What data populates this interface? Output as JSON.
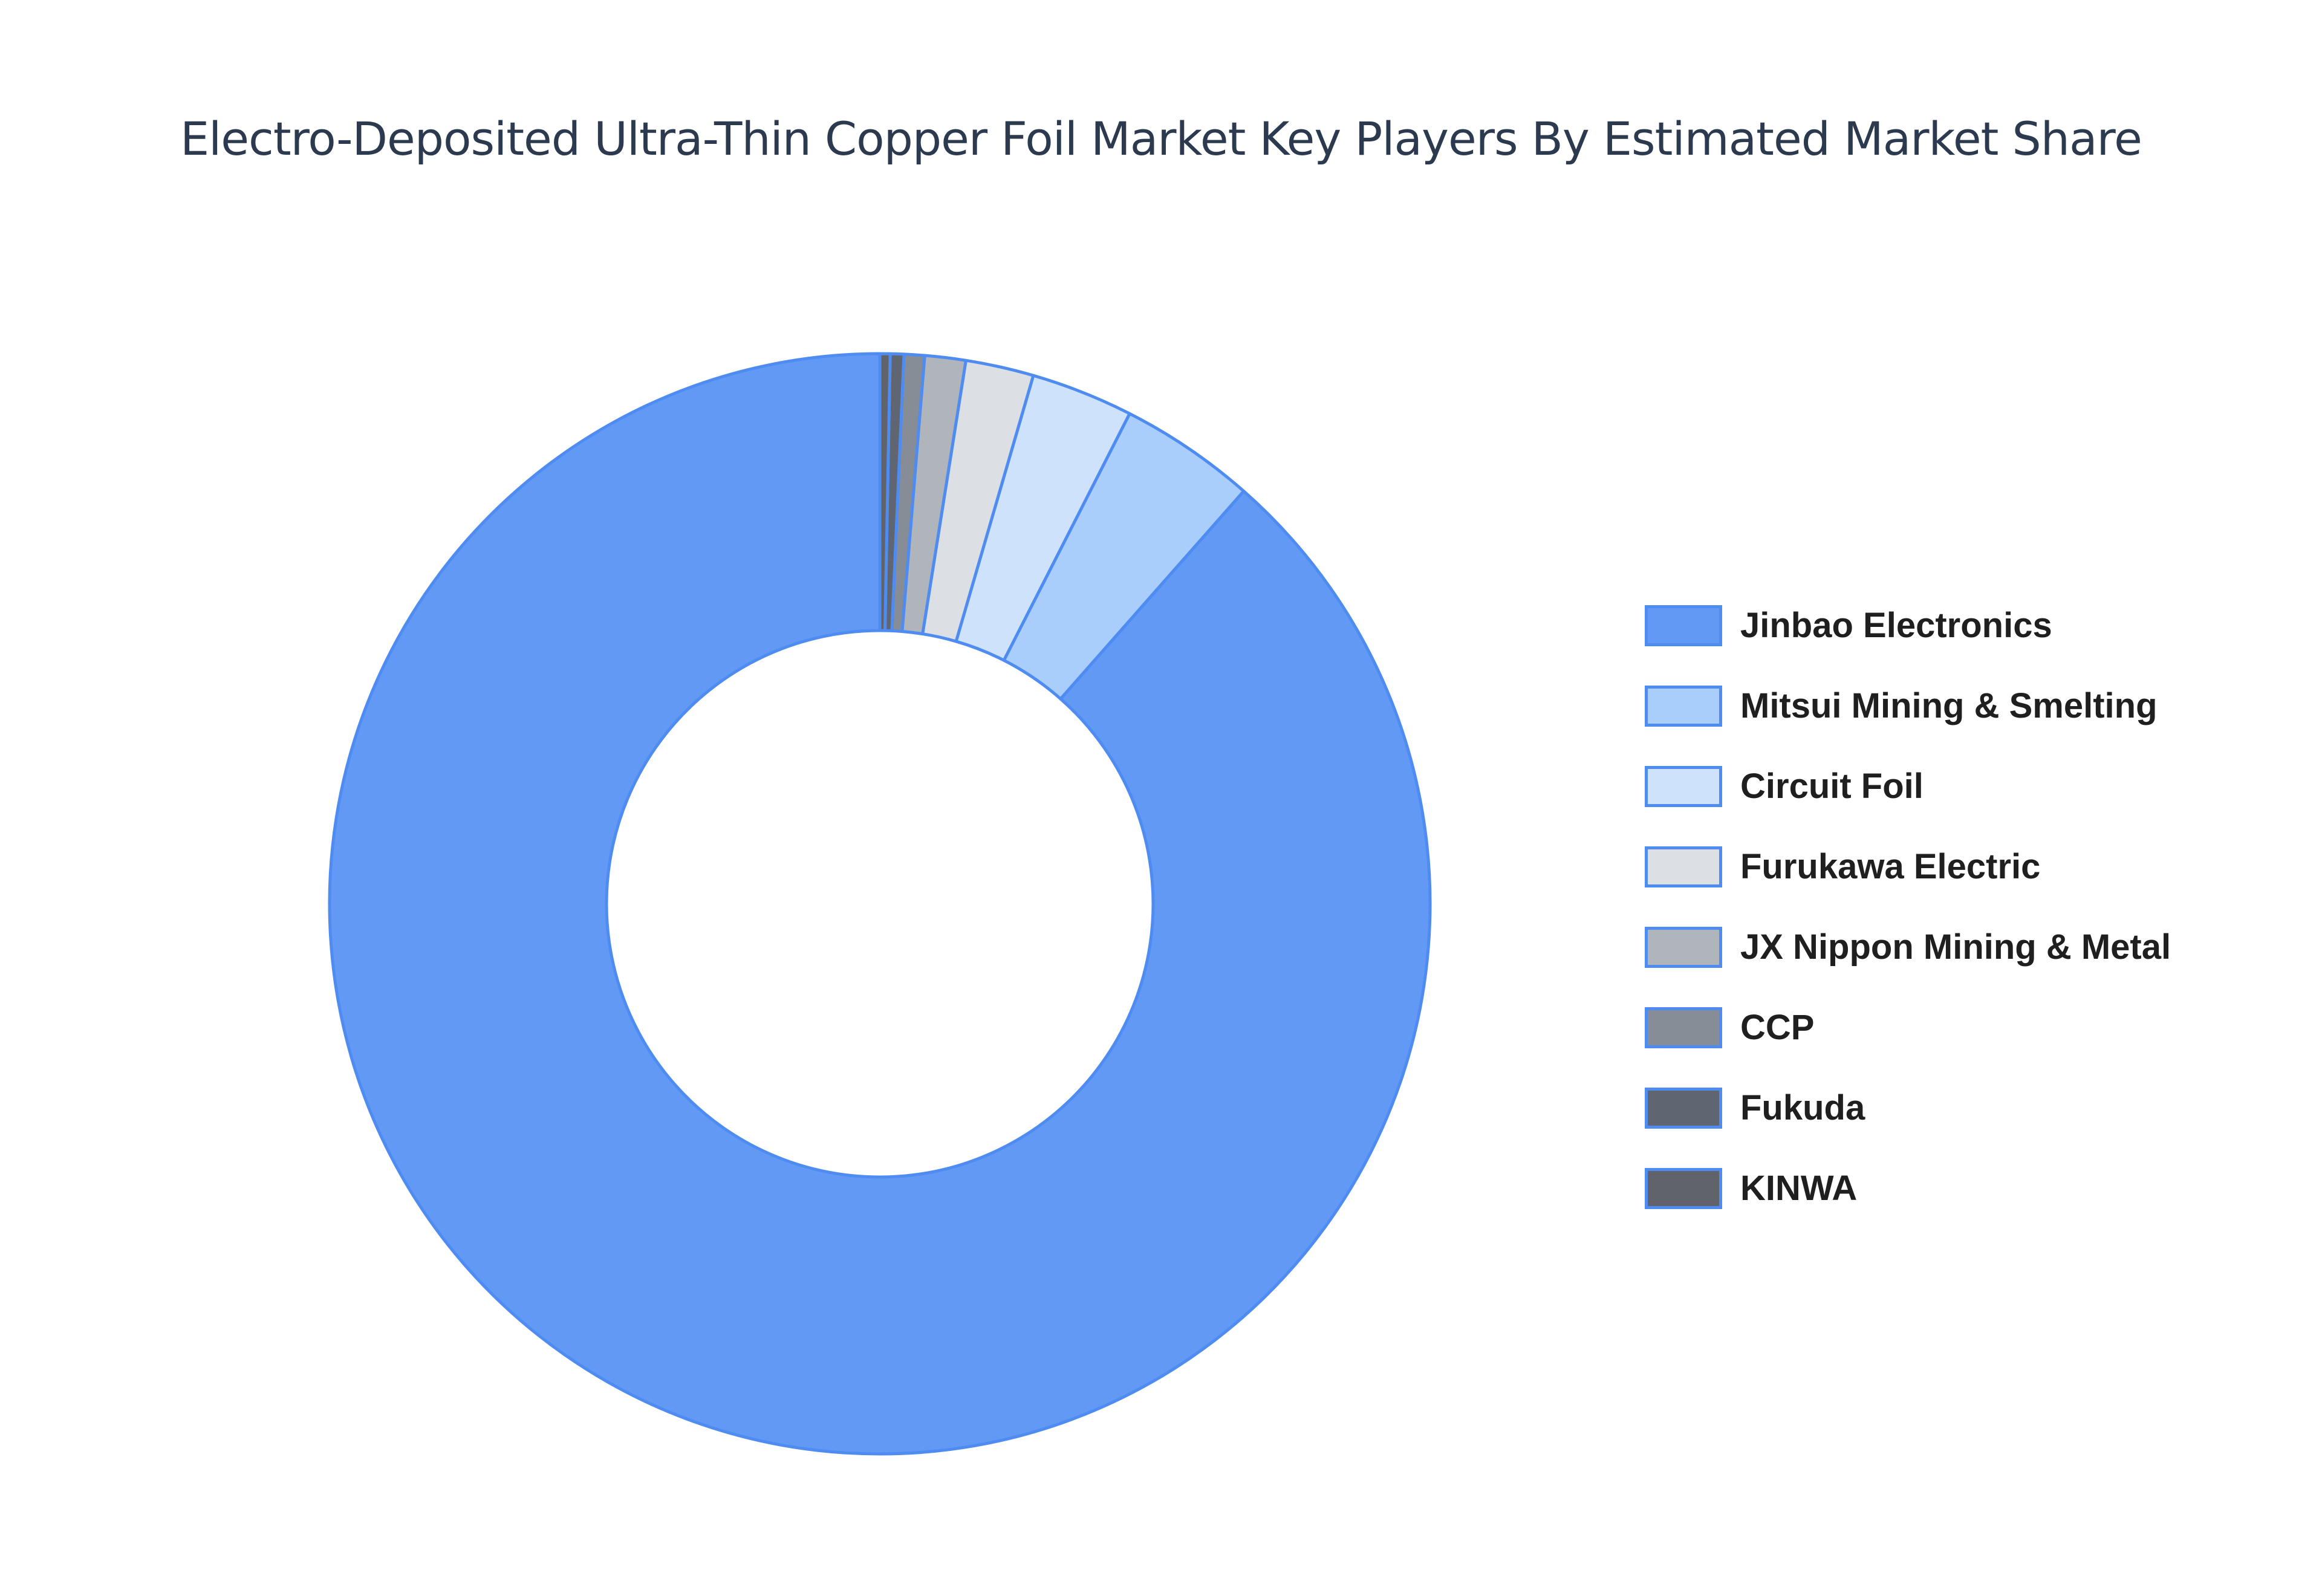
{
  "chart_data": {
    "type": "pie",
    "title": "Electro-Deposited Ultra-Thin Copper Foil Market Key Players By Estimated Market Share",
    "hole": true,
    "legend_position": "right",
    "slices": [
      {
        "label": "Jinbao Electronics",
        "value": 88.5,
        "color": "#6199f5"
      },
      {
        "label": "Mitsui Mining & Smelting",
        "value": 4.0,
        "color": "#a9cefc"
      },
      {
        "label": "Circuit Foil",
        "value": 3.0,
        "color": "#cfe2fc"
      },
      {
        "label": "Furukawa Electric",
        "value": 2.0,
        "color": "#dcdfe4"
      },
      {
        "label": "JX Nippon Mining & Metal",
        "value": 1.2,
        "color": "#b0b5bc"
      },
      {
        "label": "CCP",
        "value": 0.6,
        "color": "#878d97"
      },
      {
        "label": "Fukuda",
        "value": 0.4,
        "color": "#5f6672"
      },
      {
        "label": "KINWA",
        "value": 0.3,
        "color": "#60636a"
      }
    ]
  }
}
